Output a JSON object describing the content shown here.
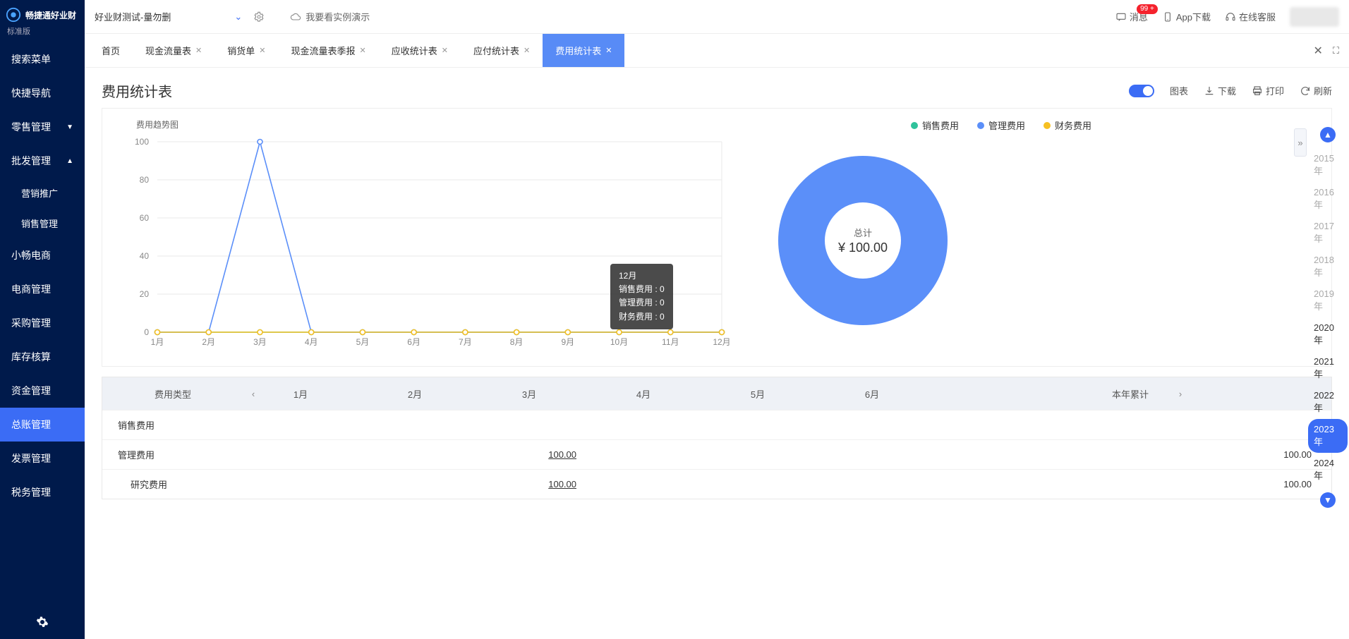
{
  "brand": {
    "name": "畅捷通好业财",
    "edition": "标准版"
  },
  "sidebar": {
    "items": [
      {
        "label": "搜索菜单",
        "expand": ""
      },
      {
        "label": "快捷导航",
        "expand": ""
      },
      {
        "label": "零售管理",
        "expand": "▼"
      },
      {
        "label": "批发管理",
        "expand": "▲",
        "subs": [
          "营销推广",
          "销售管理"
        ]
      },
      {
        "label": "小畅电商",
        "expand": ""
      },
      {
        "label": "电商管理",
        "expand": ""
      },
      {
        "label": "采购管理",
        "expand": ""
      },
      {
        "label": "库存核算",
        "expand": ""
      },
      {
        "label": "资金管理",
        "expand": ""
      },
      {
        "label": "总账管理",
        "expand": "",
        "active": true
      },
      {
        "label": "发票管理",
        "expand": ""
      },
      {
        "label": "税务管理",
        "expand": ""
      }
    ]
  },
  "topbar": {
    "workspace": "好业财测试-量勿删",
    "demo": "我要看实例演示",
    "msg": "消息",
    "msg_badge": "99 +",
    "app": "App下载",
    "cs": "在线客服"
  },
  "tabs": {
    "list": [
      {
        "label": "首页",
        "closable": false
      },
      {
        "label": "现金流量表",
        "closable": true
      },
      {
        "label": "销货单",
        "closable": true
      },
      {
        "label": "现金流量表季报",
        "closable": true
      },
      {
        "label": "应收统计表",
        "closable": true
      },
      {
        "label": "应付统计表",
        "closable": true
      },
      {
        "label": "费用统计表",
        "closable": true,
        "active": true
      }
    ]
  },
  "page": {
    "title": "费用统计表",
    "actions": {
      "chart": "图表",
      "download": "下载",
      "print": "打印",
      "refresh": "刷新"
    }
  },
  "chart": {
    "title": "费用趋势图",
    "type": "line",
    "x_labels": [
      "1月",
      "2月",
      "3月",
      "4月",
      "5月",
      "6月",
      "7月",
      "8月",
      "9月",
      "10月",
      "11月",
      "12月"
    ],
    "y_ticks": [
      0,
      20,
      40,
      60,
      80,
      100
    ],
    "ylim": [
      0,
      100
    ],
    "series": [
      {
        "name": "销售费用",
        "color": "#2fc29b",
        "values": [
          0,
          0,
          0,
          0,
          0,
          0,
          0,
          0,
          0,
          0,
          0,
          0
        ]
      },
      {
        "name": "管理费用",
        "color": "#5b8ff9",
        "values": [
          0,
          0,
          100,
          0,
          0,
          0,
          0,
          0,
          0,
          0,
          0,
          0
        ]
      },
      {
        "name": "财务费用",
        "color": "#f6c022",
        "values": [
          0,
          0,
          0,
          0,
          0,
          0,
          0,
          0,
          0,
          0,
          0,
          0
        ]
      }
    ],
    "grid_color": "#e8e8e8",
    "axis_color": "#cccccc",
    "marker_radius": 3.5,
    "tooltip": {
      "month": "12月",
      "lines": [
        "销售费用 : 0",
        "管理费用 : 0",
        "财务费用 : 0"
      ]
    }
  },
  "donut": {
    "label": "总计",
    "value": "¥ 100.00",
    "color": "#5b8ff9",
    "inner_ratio": 0.45
  },
  "years": {
    "list": [
      "2015年",
      "2016年",
      "2017年",
      "2018年",
      "2019年",
      "2020年",
      "2021年",
      "2022年",
      "2023年",
      "2024年"
    ],
    "visible_from": "2020年",
    "active": "2023年"
  },
  "table": {
    "type_header": "费用类型",
    "months": [
      "1月",
      "2月",
      "3月",
      "4月",
      "5月",
      "6月"
    ],
    "total_header": "本年累计",
    "rows": [
      {
        "label": "销售费用",
        "indent": 0,
        "cells": [
          "",
          "",
          "",
          "",
          "",
          ""
        ],
        "total": ""
      },
      {
        "label": "管理费用",
        "indent": 0,
        "cells": [
          "",
          "",
          "100.00",
          "",
          "",
          ""
        ],
        "total": "100.00",
        "underline": true
      },
      {
        "label": "研究费用",
        "indent": 1,
        "cells": [
          "",
          "",
          "100.00",
          "",
          "",
          ""
        ],
        "total": "100.00",
        "underline": true
      }
    ]
  }
}
